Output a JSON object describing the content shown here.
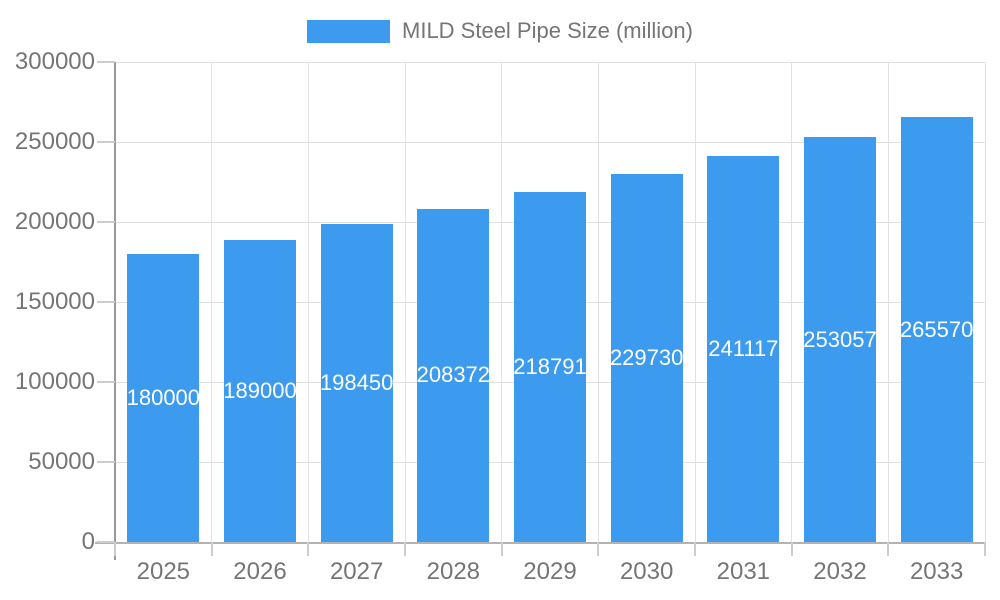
{
  "legend": {
    "label": "MILD Steel Pipe Size (million)"
  },
  "chart_data": {
    "type": "bar",
    "title": "",
    "series_name": "MILD Steel Pipe Size (million)",
    "categories": [
      "2025",
      "2026",
      "2027",
      "2028",
      "2029",
      "2030",
      "2031",
      "2032",
      "2033"
    ],
    "values": [
      180000,
      189000,
      198450,
      208372,
      218791,
      229730,
      241117,
      253057,
      265570
    ],
    "data_labels": [
      "180000",
      "189000",
      "198450",
      "208372",
      "218791",
      "229730",
      "241117",
      "253057",
      "265570"
    ],
    "xlabel": "",
    "ylabel": "",
    "ylim": [
      0,
      300000
    ],
    "ytick_step": 50000,
    "yticks": [
      0,
      50000,
      100000,
      150000,
      200000,
      250000,
      300000
    ],
    "grid": true,
    "legend_position": "top-center",
    "colors": {
      "bar": "#3C9AEF",
      "grid": "#e2e2e2",
      "tick": "#cccccc",
      "axis_y": "#999999",
      "axis_x": "#b3b3b3",
      "text": "#757575",
      "bar_label": "#ffffff",
      "background": "#ffffff"
    }
  }
}
